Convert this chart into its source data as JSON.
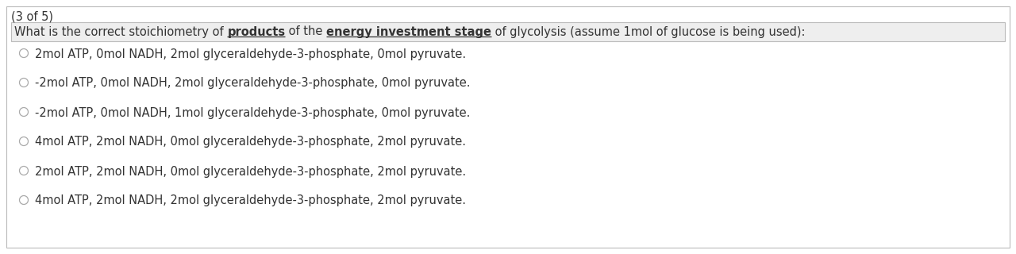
{
  "header": "(3 of 5)",
  "question_plain_start": "What is the correct stoichiometry of ",
  "question_bold_underline_1": "products",
  "question_plain_mid": " of the ",
  "question_bold_underline_2": "energy investment stage",
  "question_plain_end": " of glycolysis (assume 1mol of glucose is being used):",
  "options": [
    "2mol ATP, 0mol NADH, 2mol glyceraldehyde-3-phosphate, 0mol pyruvate.",
    "-2mol ATP, 0mol NADH, 2mol glyceraldehyde-3-phosphate, 0mol pyruvate.",
    "-2mol ATP, 0mol NADH, 1mol glyceraldehyde-3-phosphate, 0mol pyruvate.",
    "4mol ATP, 2mol NADH, 0mol glyceraldehyde-3-phosphate, 2mol pyruvate.",
    "2mol ATP, 2mol NADH, 0mol glyceraldehyde-3-phosphate, 2mol pyruvate.",
    "4mol ATP, 2mol NADH, 2mol glyceraldehyde-3-phosphate, 2mol pyruvate."
  ],
  "bg_color": "#ffffff",
  "text_color": "#333333",
  "border_color": "#bbbbbb",
  "question_box_color": "#eeeeee",
  "font_size_header": 10.5,
  "font_size_question": 10.5,
  "font_size_options": 10.5,
  "radio_color": "#aaaaaa",
  "outer_border_color": "#bbbbbb"
}
